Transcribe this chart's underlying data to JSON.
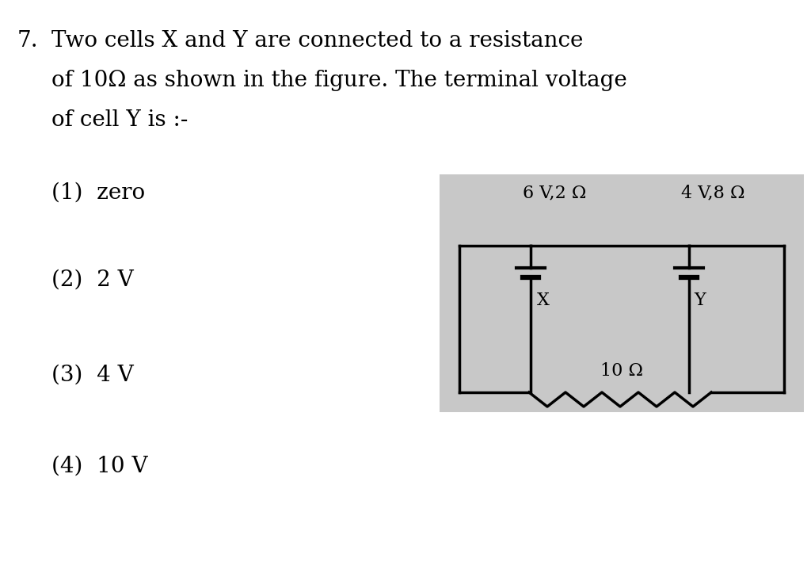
{
  "bg_color": "#ffffff",
  "question_number": "7.",
  "line1": "Two cells X and Y are connected to a resistance",
  "line2": "of 10Ω as shown in the figure. The terminal voltage",
  "line3": "of cell Y is :-",
  "options": [
    "(1)  zero",
    "(2)  2 V",
    "(3)  4 V",
    "(4)  10 V"
  ],
  "circuit_bg": "#c8c8c8",
  "label_X": "6 V,2 Ω",
  "label_Y": "4 V,8 Ω",
  "label_R": "10 Ω",
  "cell_X_name": "X",
  "cell_Y_name": "Y",
  "font_size_text": 20,
  "font_size_circuit": 16
}
